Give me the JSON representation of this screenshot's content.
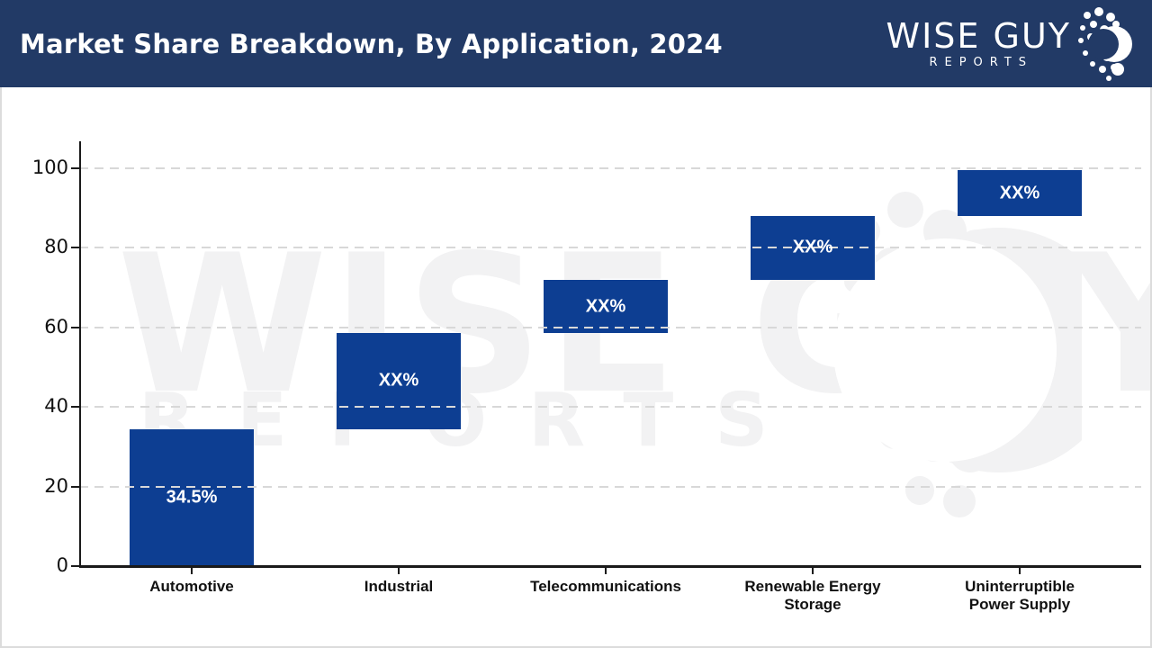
{
  "header": {
    "title": "Market Share Breakdown, By Application, 2024",
    "logo": {
      "line1": "WISE GUY",
      "line2": "REPORTS"
    }
  },
  "watermark": {
    "line1": "WISE GUY",
    "line2": "REPORTS"
  },
  "chart_data": {
    "type": "bar",
    "subtype": "waterfall",
    "title": "Market Share Breakdown, By Application, 2024",
    "xlabel": "",
    "ylabel": "",
    "ylim": [
      0,
      106.8
    ],
    "yticks": [
      0,
      20,
      40,
      60,
      80,
      100
    ],
    "grid": "horizontal-dashed",
    "legend": "none",
    "categories": [
      "Automotive",
      "Industrial",
      "Telecommunications",
      "Renewable Energy Storage",
      "Uninterruptible Power Supply"
    ],
    "segments": [
      {
        "id": "automotive",
        "label_lines": [
          "Automotive"
        ],
        "start": 0,
        "end": 34.5,
        "value_label": "34.5%"
      },
      {
        "id": "industrial",
        "label_lines": [
          "Industrial"
        ],
        "start": 34.5,
        "end": 58.5,
        "value_label": "XX%"
      },
      {
        "id": "telecommunications",
        "label_lines": [
          "Telecommunications"
        ],
        "start": 58.5,
        "end": 72,
        "value_label": "XX%"
      },
      {
        "id": "renewable-energy-storage",
        "label_lines": [
          "Renewable Energy",
          "Storage"
        ],
        "start": 72,
        "end": 88,
        "value_label": "XX%"
      },
      {
        "id": "uninterruptible-power-supply",
        "label_lines": [
          "Uninterruptible",
          "Power Supply"
        ],
        "start": 88,
        "end": 99.5,
        "value_label": "XX%"
      }
    ],
    "colors": {
      "bar": "#0d3e92",
      "value_label": "#ffffff",
      "grid": "#d8d8d8",
      "axis": "#1a1a1a",
      "header_bg": "#223a66",
      "watermark": "#f2f2f3",
      "page_border": "#dcdcdc"
    }
  }
}
